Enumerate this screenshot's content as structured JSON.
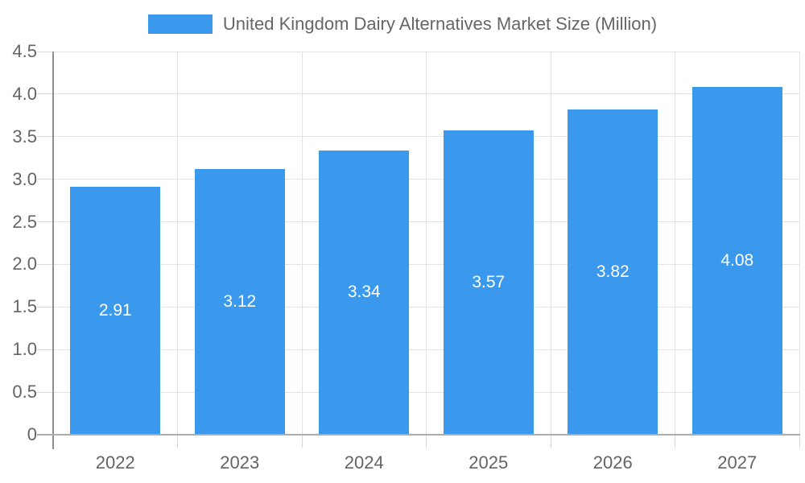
{
  "legend": {
    "label": "United Kingdom Dairy Alternatives Market Size (Million)"
  },
  "chart_data": {
    "type": "bar",
    "title": "United Kingdom Dairy Alternatives Market Size (Million)",
    "xlabel": "",
    "ylabel": "",
    "categories": [
      "2022",
      "2023",
      "2024",
      "2025",
      "2026",
      "2027"
    ],
    "values": [
      2.91,
      3.12,
      3.34,
      3.57,
      3.82,
      4.08
    ],
    "value_labels": [
      "2.91",
      "3.12",
      "3.34",
      "3.57",
      "3.82",
      "4.08"
    ],
    "ylim": [
      0,
      4.5
    ],
    "ytick_labels": [
      "4.5",
      "4.0",
      "3.5",
      "3.0",
      "2.5",
      "2.0",
      "1.5",
      "1.0",
      "0.5",
      "0"
    ],
    "grid": true,
    "legend_position": "top",
    "bar_color": "#3B99ED",
    "value_label_color": "#FFFFFF"
  },
  "colors": {
    "background": "#FFFFFF",
    "axis_text": "#646464",
    "legend_text": "#666666",
    "grid_line": "#E3E3E3",
    "tick_line": "#D6D6D6",
    "y_axis_line": "#8F8F8F",
    "baseline": "#ADADAD"
  }
}
